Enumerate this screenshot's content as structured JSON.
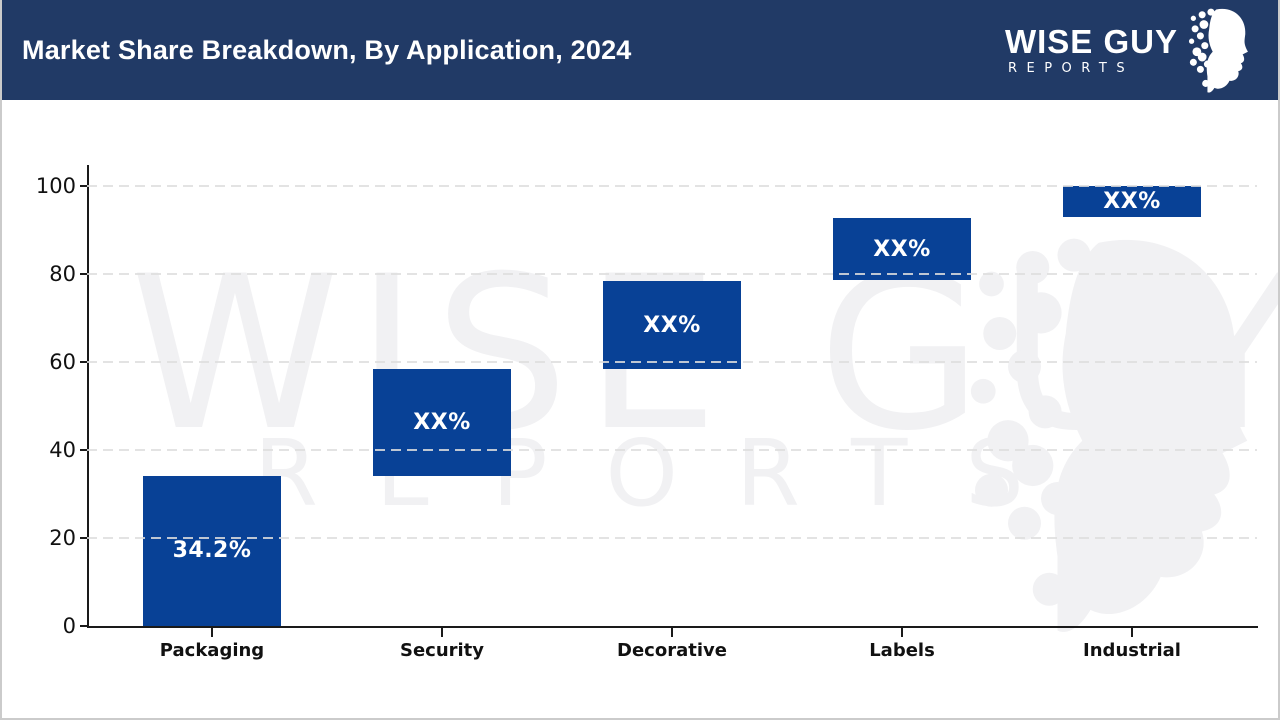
{
  "header": {
    "title": "Market Share Breakdown, By Application, 2024",
    "logo": {
      "line1": "WISE GUY",
      "line2": "REPORTS"
    }
  },
  "watermark": {
    "line1": "WISE GUY",
    "line2": "REPORTS"
  },
  "chart_data": {
    "type": "bar",
    "subtype": "waterfall",
    "title": "Market Share Breakdown, By Application, 2024",
    "categories": [
      "Packaging",
      "Security",
      "Decorative",
      "Labels",
      "Industrial"
    ],
    "segments": [
      {
        "category": "Packaging",
        "start": 0,
        "end": 34.2,
        "label": "34.2%"
      },
      {
        "category": "Security",
        "start": 34.2,
        "end": 58.5,
        "label": "XX%"
      },
      {
        "category": "Decorative",
        "start": 58.5,
        "end": 78.3,
        "label": "XX%"
      },
      {
        "category": "Labels",
        "start": 78.6,
        "end": 92.7,
        "label": "XX%"
      },
      {
        "category": "Industrial",
        "start": 93.0,
        "end": 100.0,
        "label": "XX%"
      }
    ],
    "y_ticks": [
      0,
      20,
      40,
      60,
      80,
      100
    ],
    "ylim": [
      0,
      105
    ],
    "xlabel": "",
    "ylabel": "",
    "grid": true,
    "legend": "none",
    "bar_color": "#084196",
    "bar_label_color": "#ffffff",
    "header_color": "#213a66",
    "gridline_color": "#dedede"
  }
}
